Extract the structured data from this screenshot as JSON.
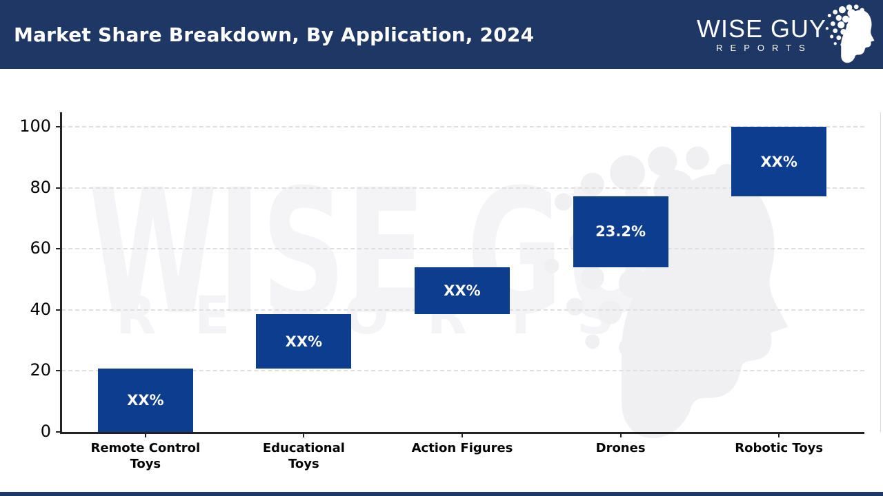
{
  "header": {
    "title": "Market Share Breakdown, By Application, 2024"
  },
  "logo": {
    "name": "WISE GUY",
    "subtitle": "REPORTS"
  },
  "watermark": {
    "line1": "WISE GUY",
    "line2": "REPORTS"
  },
  "colors": {
    "header_navy": "#1f3765",
    "bar_blue": "#0d3d8f",
    "grid": "#dfdfdf",
    "axis": "#222222",
    "bar_label": "#ffffff",
    "watermark": "#f4f4f6",
    "watermark_head": "#f0f0f3"
  },
  "chart_data": {
    "type": "bar",
    "subtype": "floating-waterfall",
    "title": "Market Share Breakdown, By Application, 2024",
    "xlabel": "",
    "ylabel": "",
    "categories": [
      "Remote Control Toys",
      "Educational Toys",
      "Action Figures",
      "Drones",
      "Robotic Toys"
    ],
    "segments": [
      {
        "category": "Remote Control Toys",
        "start": 0,
        "end": 20.7,
        "label": "XX%"
      },
      {
        "category": "Educational Toys",
        "start": 20.7,
        "end": 38.6,
        "label": "XX%"
      },
      {
        "category": "Action Figures",
        "start": 38.6,
        "end": 54.0,
        "label": "XX%"
      },
      {
        "category": "Drones",
        "start": 54.0,
        "end": 77.2,
        "label": "23.2%"
      },
      {
        "category": "Robotic Toys",
        "start": 77.2,
        "end": 100,
        "label": "XX%"
      }
    ],
    "yticks": [
      0,
      20,
      40,
      60,
      80,
      100
    ],
    "ylim": [
      0,
      106.5
    ],
    "grid": "dashed-horizontal",
    "legend": "none"
  }
}
